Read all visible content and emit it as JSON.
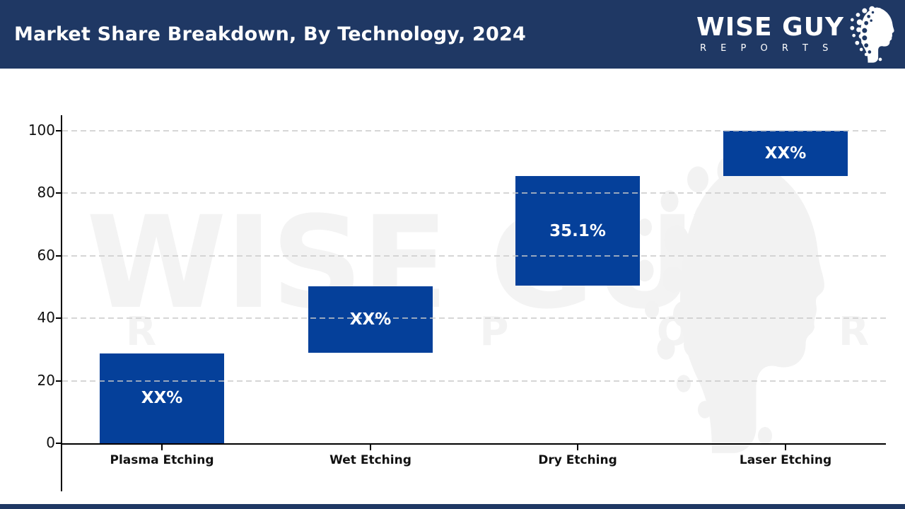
{
  "header": {
    "title": "Market Share Breakdown, By Technology, 2024",
    "logo": {
      "name": "WISE GUY REPORTS",
      "line1": "WISE GUY",
      "line2": "R E P O R T S"
    }
  },
  "watermark": {
    "line1": "WISE GUY",
    "line2": "R E P O R T S"
  },
  "chart_data": {
    "type": "bar",
    "subtype": "floating-segment-waterfall",
    "title": "Market Share Breakdown, By Technology, 2024",
    "xlabel": "",
    "ylabel": "",
    "categories": [
      "Plasma Etching",
      "Wet Etching",
      "Dry Etching",
      "Laser Etching"
    ],
    "bars": [
      {
        "category": "Plasma Etching",
        "start": 0,
        "end": 28.8,
        "label": "XX%"
      },
      {
        "category": "Wet Etching",
        "start": 28.9,
        "end": 50.2,
        "label": "XX%"
      },
      {
        "category": "Dry Etching",
        "start": 50.3,
        "end": 85.4,
        "label": "35.1%"
      },
      {
        "category": "Laser Etching",
        "start": 85.4,
        "end": 100.0,
        "label": "XX%"
      }
    ],
    "yticks": [
      0,
      20,
      40,
      60,
      80,
      100
    ],
    "ylim": [
      0,
      104.5
    ],
    "grid": "horizontal-dashed",
    "legend": "none",
    "colors": {
      "bar": "#05409a",
      "header_bar": "#1f3864",
      "grid": "#c9c9c9",
      "axis": "#000000",
      "value_label": "#ffffff",
      "tick_label": "#111111",
      "watermark": "#f3f3f3"
    }
  }
}
